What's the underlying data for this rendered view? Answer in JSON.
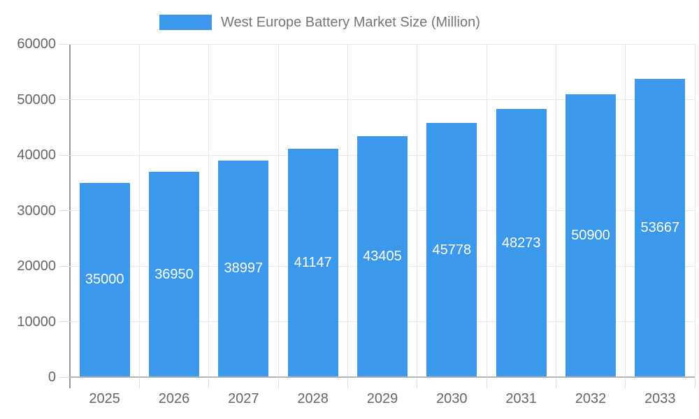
{
  "chart_data": {
    "type": "bar",
    "title": "West Europe Battery Market Size (Million)",
    "categories": [
      "2025",
      "2026",
      "2027",
      "2028",
      "2029",
      "2030",
      "2031",
      "2032",
      "2033"
    ],
    "values": [
      35000,
      36950,
      38997,
      41147,
      43405,
      45778,
      48273,
      50900,
      53667
    ],
    "xlabel": "",
    "ylabel": "",
    "ylim": [
      0,
      60000
    ],
    "ytick_step": 10000,
    "yticks": [
      0,
      10000,
      20000,
      30000,
      40000,
      50000,
      60000
    ],
    "grid": true,
    "legend_position": "top",
    "value_labels": "inside-center",
    "colors": {
      "bar": "#3B98EB",
      "value_label": "#FFFFFF",
      "axis_label": "#666666",
      "legend_text": "#757575",
      "gridline": "#E8E8E8",
      "axis_line": "#999999",
      "bottom_axis_line": "#B3B3B3",
      "tick": "#DDDDDD",
      "background": "#FFFFFF"
    }
  }
}
